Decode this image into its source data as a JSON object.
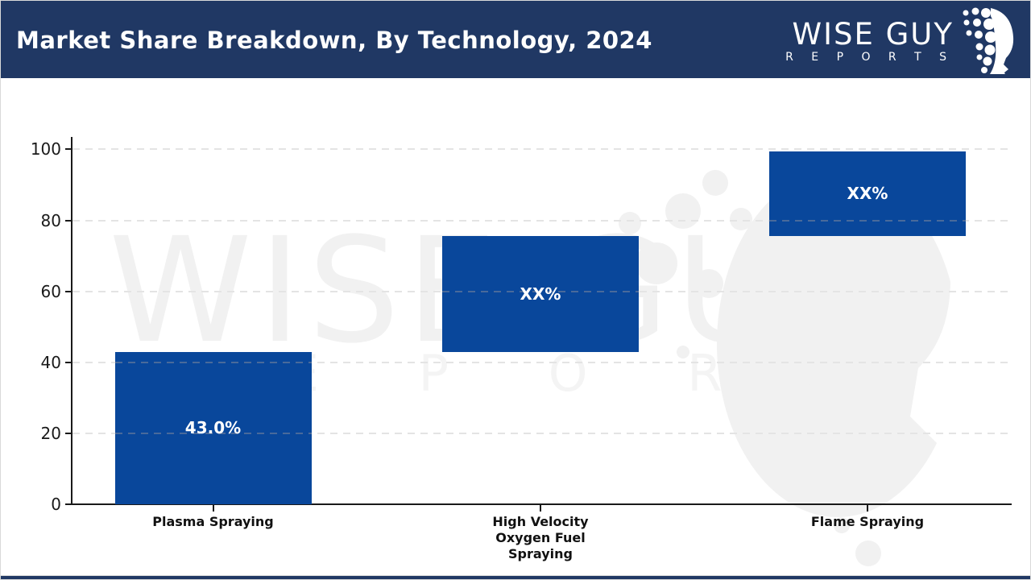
{
  "header": {
    "title": "Market Share Breakdown, By Technology, 2024",
    "logo": {
      "line1": "WISE GUY",
      "line2": "R E P O R T S"
    }
  },
  "watermark": {
    "line1": "WISE GU Y",
    "line2": "R E P O R T S"
  },
  "chart_data": {
    "type": "bar",
    "subtype": "waterfall-floating-segments",
    "title": "Market Share Breakdown, By Technology, 2024",
    "categories": [
      {
        "lines": [
          "Plasma Spraying"
        ]
      },
      {
        "lines": [
          "High Velocity",
          "Oxygen Fuel",
          "Spraying"
        ]
      },
      {
        "lines": [
          "Flame Spraying"
        ]
      }
    ],
    "segments": [
      {
        "label": "43.0%",
        "start": 0,
        "end": 43
      },
      {
        "label": "XX%",
        "start": 43,
        "end": 75.5
      },
      {
        "label": "XX%",
        "start": 75.5,
        "end": 99.5
      }
    ],
    "xlabel": "",
    "ylabel": "",
    "ylim": [
      0,
      105
    ],
    "yticks": [
      0,
      20,
      40,
      60,
      80,
      100
    ],
    "grid": "horizontal-dashed",
    "legend": "none",
    "bar_color": "#09479b",
    "bar_label_color": "#ffffff",
    "grid_color": "#e4e4e4",
    "axis_color": "#1a1a1a",
    "header_color": "#203864"
  }
}
